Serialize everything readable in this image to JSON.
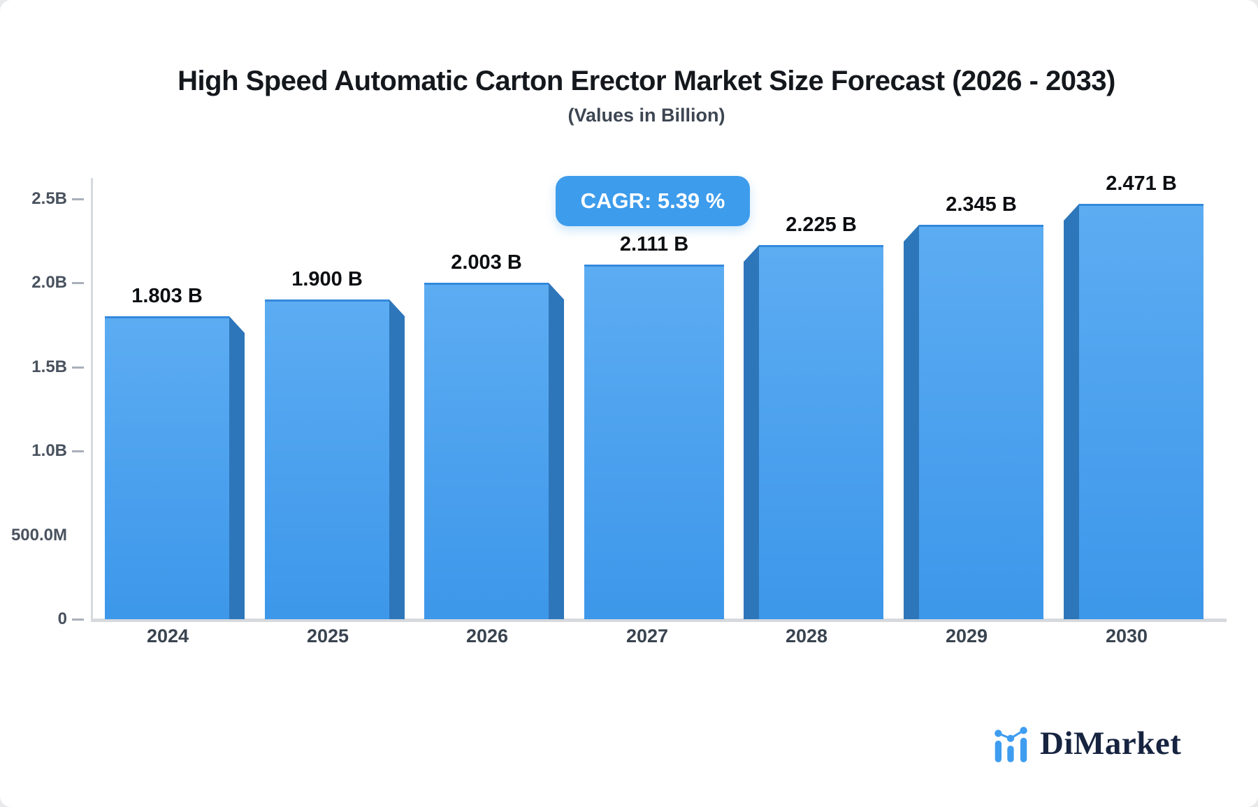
{
  "header": {
    "title": "High Speed Automatic Carton Erector Market Size Forecast (2026 - 2033)",
    "subtitle": "(Values in Billion)"
  },
  "cagr_badge": {
    "label": "CAGR: 5.39 %",
    "background": "#3d9cec",
    "text_color": "#ffffff"
  },
  "chart_data": {
    "type": "bar",
    "title": "High Speed Automatic Carton Erector Market Size Forecast (2026 - 2033)",
    "subtitle": "(Values in Billion)",
    "categories": [
      "2024",
      "2025",
      "2026",
      "2027",
      "2028",
      "2029",
      "2030"
    ],
    "values": [
      1.803,
      1.9,
      2.003,
      2.111,
      2.225,
      2.345,
      2.471
    ],
    "value_labels": [
      "1.803 B",
      "1.900 B",
      "2.003 B",
      "2.111 B",
      "2.225 B",
      "2.345 B",
      "2.471 B"
    ],
    "unit": "Billion",
    "ylim": [
      0,
      2.5
    ],
    "y_ticks": [
      {
        "label": "2.5B",
        "value": 2.5,
        "dash": true
      },
      {
        "label": "2.0B",
        "value": 2.0,
        "dash": true
      },
      {
        "label": "1.5B",
        "value": 1.5,
        "dash": true
      },
      {
        "label": "1.0B",
        "value": 1.0,
        "dash": true
      },
      {
        "label": "500.0M",
        "value": 0.5,
        "dash": false
      },
      {
        "label": "0",
        "value": 0.0,
        "dash": true
      }
    ],
    "grid": false,
    "legend": false,
    "annotation": "CAGR: 5.39 %",
    "colors": {
      "bar_top": "#5cacf2",
      "bar_bottom": "#3d97ea",
      "bar_edge": "#3489dc",
      "bar_side_3d": "#2e76ba",
      "axis": "#d6d9dd",
      "tick_text": "#49525e",
      "category_text": "#3a4450",
      "value_text": "#0c0e11",
      "badge": "#3d9cec"
    }
  },
  "branding": {
    "logo_text": "DiMarket",
    "logo_icon": "bar-chart-trend-icon",
    "logo_color": "#3f9df0",
    "logo_text_color": "#172440"
  }
}
